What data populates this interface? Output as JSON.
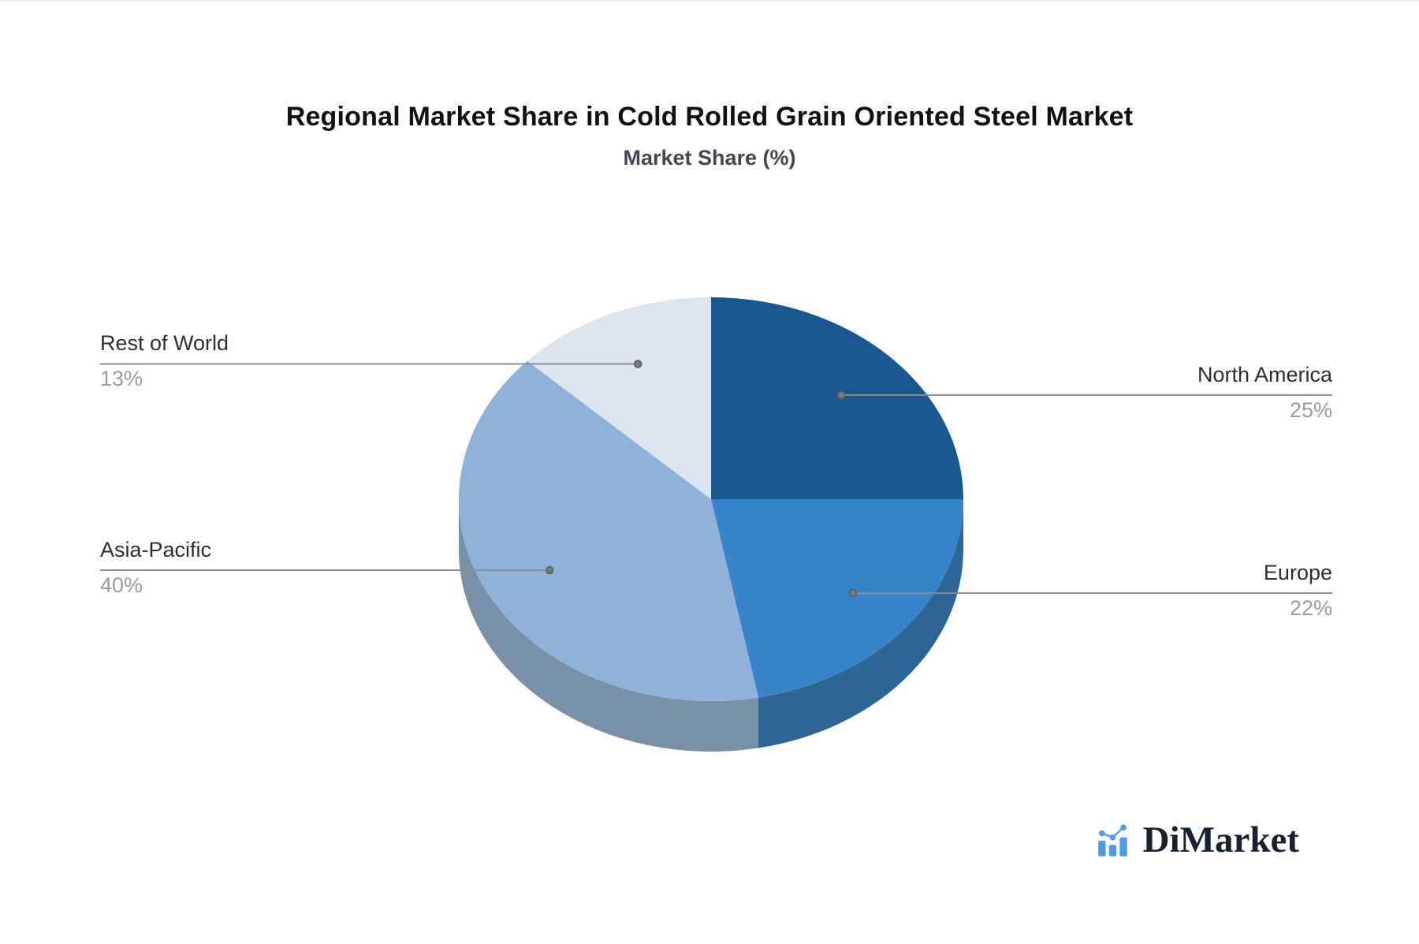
{
  "header": {
    "title": "Regional Market Share in Cold Rolled Grain Oriented Steel Market",
    "subtitle": "Market Share (%)"
  },
  "chart_data": {
    "type": "pie",
    "title": "Regional Market Share in Cold Rolled Grain Oriented Steel Market",
    "subtitle": "Market Share (%)",
    "unit": "percent",
    "effect": "3d",
    "start_angle_deg": 0,
    "direction": "clockwise",
    "legend_position": "callout-labels",
    "slices": [
      {
        "label": "North America",
        "value": 25,
        "pct_label": "25%",
        "color": "#1A578F"
      },
      {
        "label": "Europe",
        "value": 22,
        "pct_label": "22%",
        "color": "#3884CB",
        "depth_color": "#2D6594"
      },
      {
        "label": "Asia-Pacific",
        "value": 40,
        "pct_label": "40%",
        "color": "#90B2DA",
        "depth_color": "#7890A8"
      },
      {
        "label": "Rest of World",
        "value": 13,
        "pct_label": "13%",
        "color": "#DCE4EE"
      }
    ],
    "callout_style": {
      "line_color": "#8C8C8C",
      "dot_color": "#7A7A7A",
      "label_color": "#2E2E2E",
      "pct_color": "#9B9B9B"
    }
  },
  "footer": {
    "brand": "DiMarket",
    "logo_icon": "bar-chart-with-trend-dots",
    "logo_blue": "#4D9BE8",
    "logo_text_color": "#16222F"
  }
}
